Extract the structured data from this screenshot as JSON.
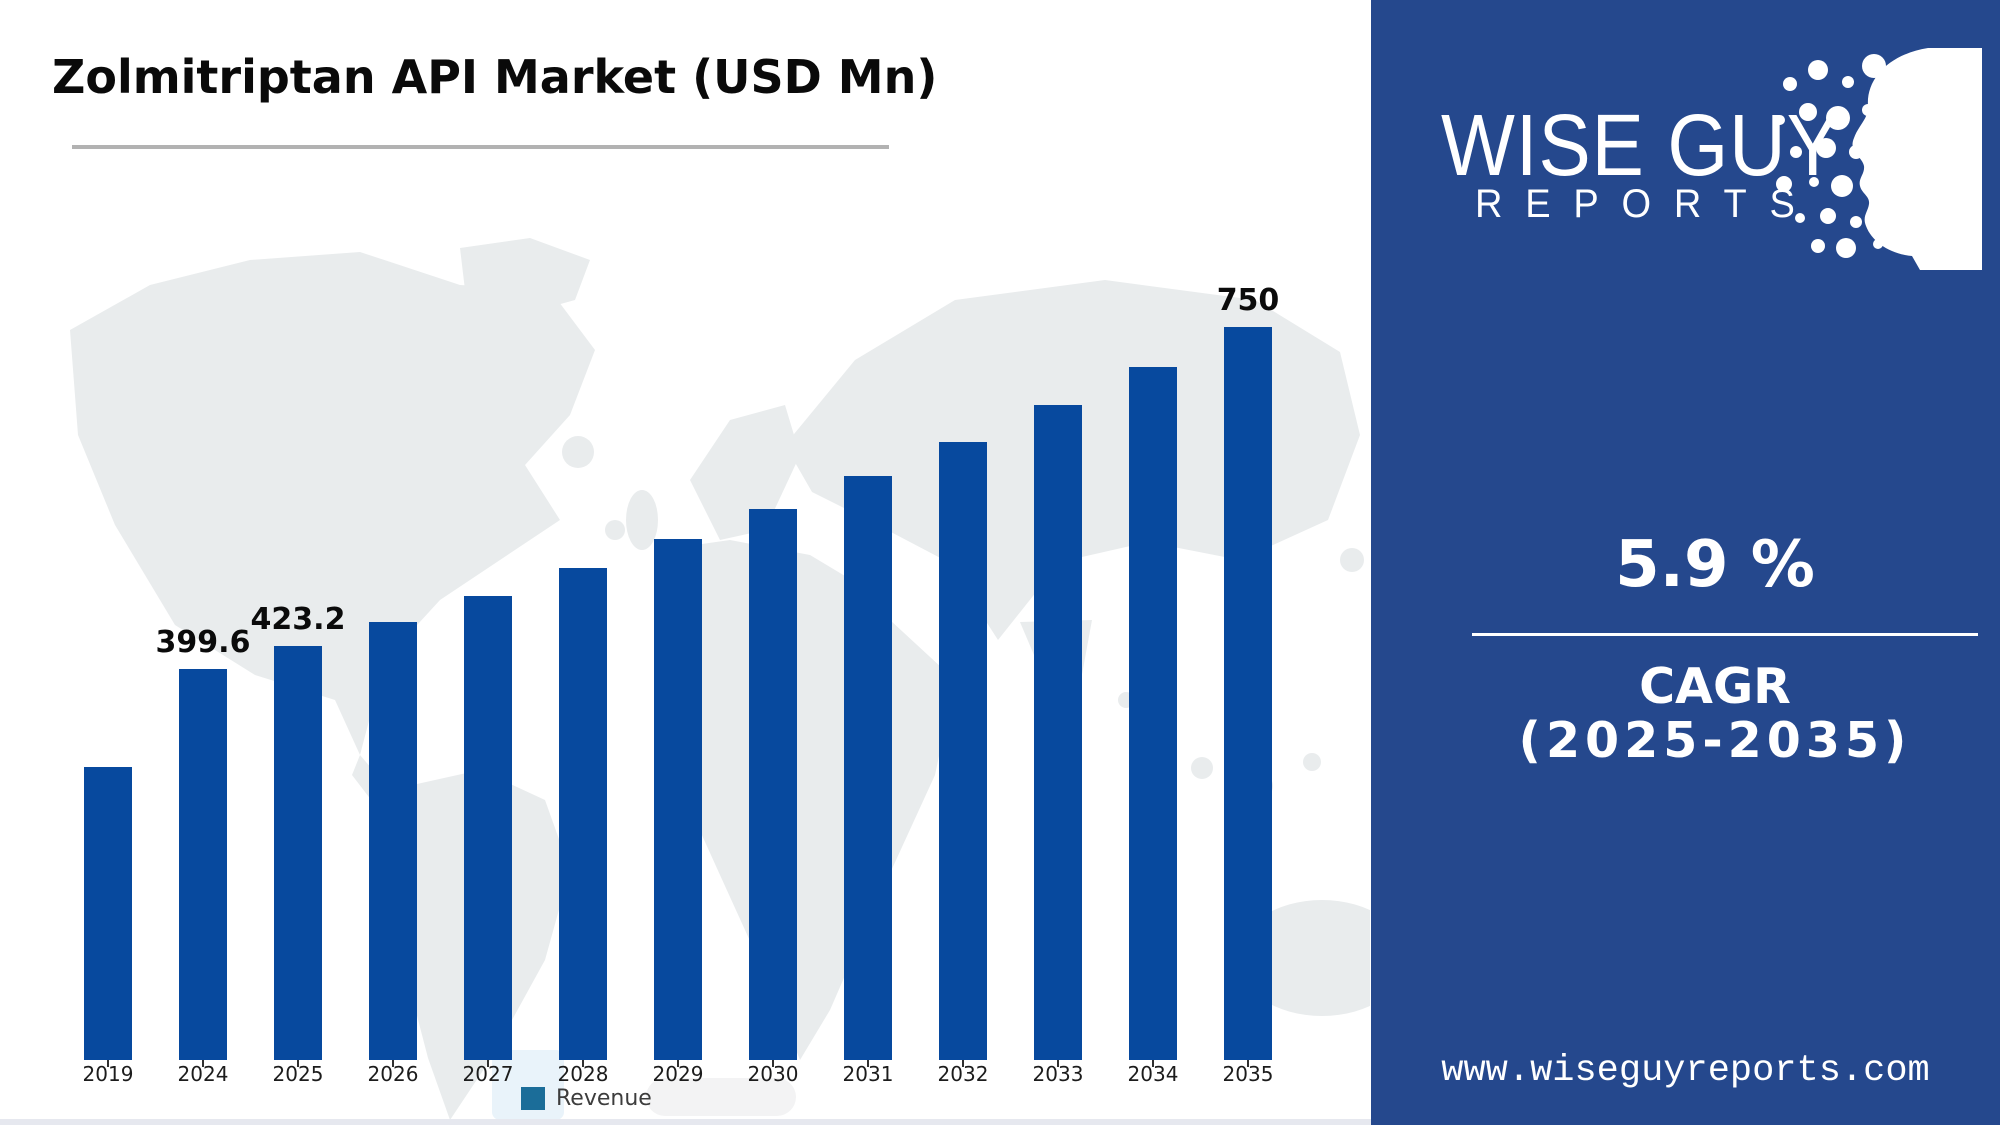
{
  "title": "Zolmitriptan API Market (USD Mn)",
  "chart_data": {
    "type": "bar",
    "title": "Zolmitriptan API Market (USD Mn)",
    "series_name": "Revenue",
    "categories": [
      "2019",
      "2024",
      "2025",
      "2026",
      "2027",
      "2028",
      "2029",
      "2030",
      "2031",
      "2032",
      "2033",
      "2034",
      "2035"
    ],
    "values": [
      300.0,
      399.6,
      423.2,
      448.2,
      474.6,
      502.6,
      532.3,
      563.7,
      596.9,
      632.2,
      669.5,
      709.0,
      750.0
    ],
    "data_labels": [
      "",
      "399.6",
      "423.2",
      "",
      "",
      "",
      "",
      "",
      "",
      "",
      "",
      "",
      "750"
    ],
    "xlabel": "",
    "ylabel": "",
    "ylim": [
      0,
      800
    ],
    "grid": false,
    "legend_position": "bottom-center",
    "background_watermark": "light-gray-world-map"
  },
  "legend": {
    "label": "Revenue"
  },
  "side_panel": {
    "brand_line1": "WISE GUY",
    "brand_line2": "REPORTS",
    "growth_value": "5.9 %",
    "growth_label_line1": "CAGR",
    "growth_label_line2": "(2025-2035)",
    "website": "www.wiseguyreports.com"
  },
  "colors": {
    "bar": "#07499e",
    "legend_swatch": "#1b6d99",
    "panel_background": "#25488d",
    "title_text": "#0a0a0a",
    "underline": "#b2b2b2",
    "map_watermark": "#e9eced",
    "panel_text": "#ffffff"
  }
}
